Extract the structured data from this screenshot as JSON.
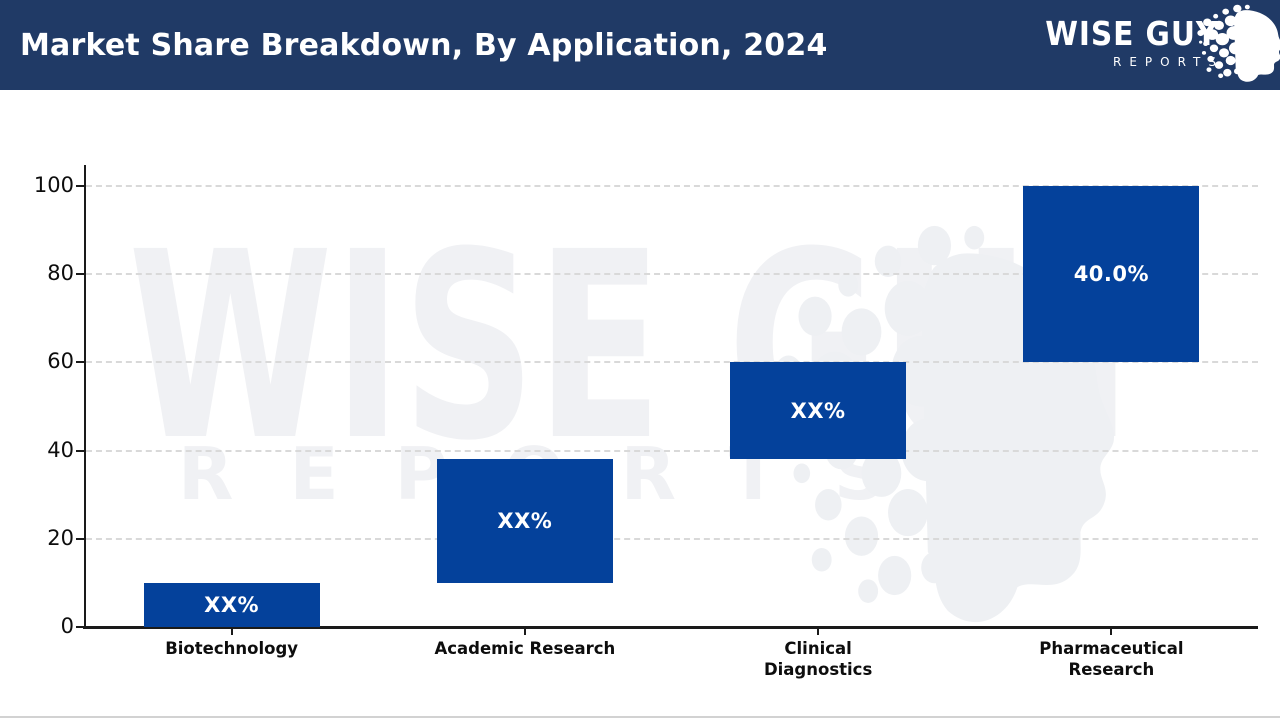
{
  "header": {
    "title": "Market Share Breakdown, By Application, 2024",
    "logo_line1": "WISE GUY",
    "logo_line2": "REPORTS",
    "bg_color": "#203a66"
  },
  "watermark": {
    "line1": "WISE GUY",
    "line2": "REPORTS"
  },
  "chart_data": {
    "type": "bar",
    "subtype": "floating-waterfall",
    "title": "Market Share Breakdown, By Application, 2024",
    "categories": [
      "Biotechnology",
      "Academic Research",
      "Clinical Diagnostics",
      "Pharmaceutical Research"
    ],
    "category_lines": [
      [
        "Biotechnology"
      ],
      [
        "Academic Research"
      ],
      [
        "Clinical",
        "Diagnostics"
      ],
      [
        "Pharmaceutical",
        "Research"
      ]
    ],
    "segments": [
      {
        "category": "Biotechnology",
        "start": 0,
        "end": 10,
        "value_label": "XX%"
      },
      {
        "category": "Academic Research",
        "start": 10,
        "end": 38,
        "value_label": "XX%"
      },
      {
        "category": "Clinical Diagnostics",
        "start": 38,
        "end": 60,
        "value_label": "XX%"
      },
      {
        "category": "Pharmaceutical Research",
        "start": 60,
        "end": 100,
        "value_label": "40.0%"
      }
    ],
    "ylim": [
      0,
      100
    ],
    "yticks": [
      "0",
      "20",
      "40",
      "60",
      "80",
      "100"
    ],
    "grid": true,
    "legend": false,
    "bar_color": "#04419b",
    "value_label_color": "#ffffff",
    "gridline_color": "#d9d9d9",
    "axis_color": "#1a1a1a"
  }
}
